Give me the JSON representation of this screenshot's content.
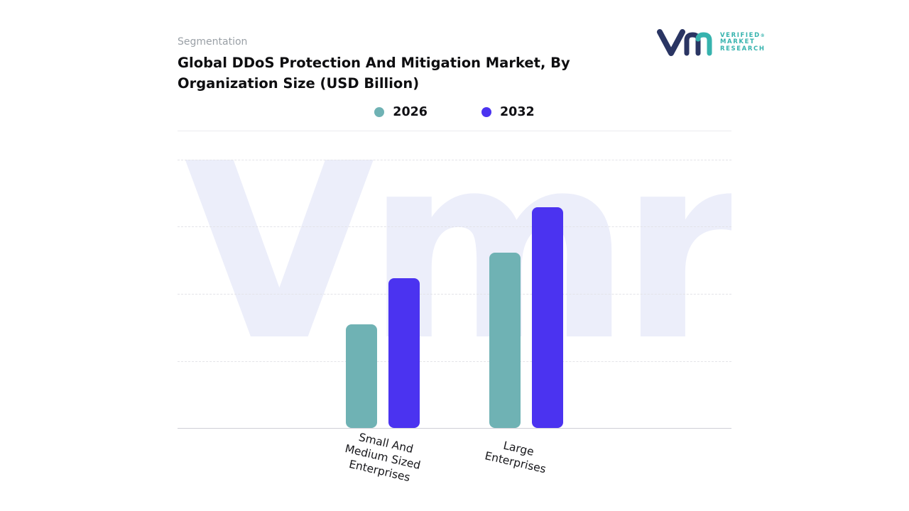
{
  "header": {
    "eyebrow": "Segmentation"
  },
  "logo": {
    "lines": [
      "VERIFIED",
      "MARKET",
      "RESEARCH"
    ],
    "registered": "®",
    "navy": "#2a3563",
    "teal": "#36b3ae"
  },
  "watermark": "Vmr",
  "chart_data": {
    "type": "bar",
    "title": "Global DDoS Protection And Mitigation Market, By Organization Size (USD Billion)",
    "categories": [
      "Small And Medium Sized Enterprises",
      "Large Enterprises"
    ],
    "series": [
      {
        "name": "2026",
        "color": "#6fb2b4",
        "values": [
          38.5,
          65.2
        ]
      },
      {
        "name": "2032",
        "color": "#4b33f0",
        "values": [
          55.7,
          82.1
        ]
      }
    ],
    "xlabel": "",
    "ylabel": "",
    "ylim": [
      0,
      100
    ],
    "grid": "horizontal-dashed",
    "legend_position": "top-center",
    "value_axis_visible": false,
    "units_note": "USD Billion; y-axis unlabeled, values estimated relative to plot height on a 0-100 scale"
  }
}
